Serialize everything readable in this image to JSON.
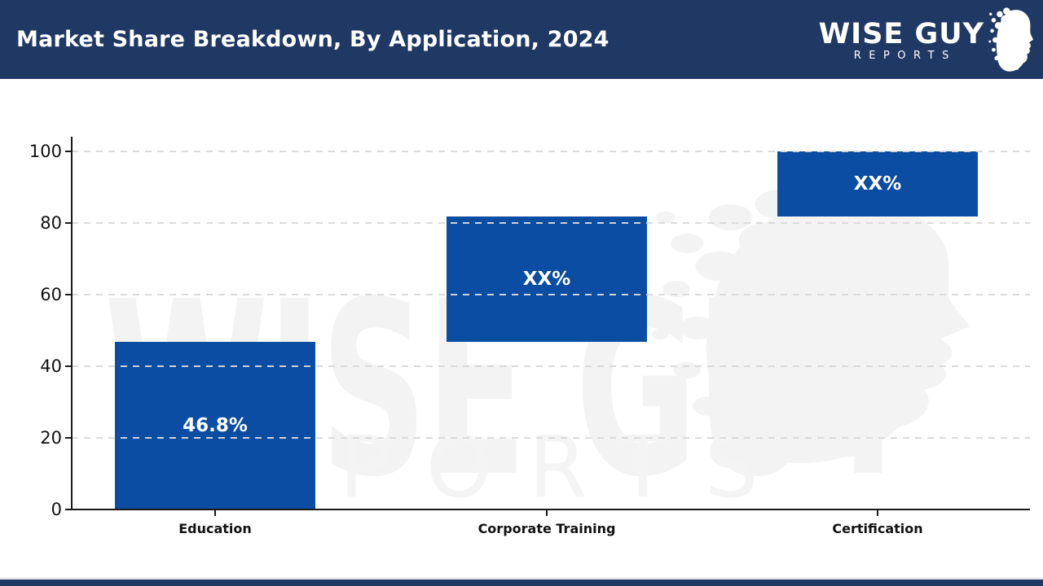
{
  "page": {
    "navy": "#1f3864",
    "white": "#ffffff"
  },
  "header": {
    "title": "Market Share Breakdown, By Application, 2024",
    "logo_line1": "WISE GUY",
    "logo_line2": "REPORTS"
  },
  "watermark": {
    "line1": "WISE GUY",
    "line2": "REPORTS"
  },
  "chart_data": {
    "type": "bar",
    "subtype": "waterfall",
    "title": "Market Share Breakdown, By Application, 2024",
    "categories": [
      "Education",
      "Corporate Training",
      "Certification"
    ],
    "segments": [
      {
        "category": "Education",
        "label": "46.8%",
        "start": 0,
        "end": 46.8
      },
      {
        "category": "Corporate Training",
        "label": "XX%",
        "start": 46.8,
        "end": 81.8
      },
      {
        "category": "Certification",
        "label": "XX%",
        "start": 81.8,
        "end": 100
      }
    ],
    "bar_labels": [
      "46.8%",
      "XX%",
      "XX%"
    ],
    "bar_color": "#0b4da2",
    "bar_label_color": "#ffffff",
    "ylim": [
      0,
      100
    ],
    "yticks": [
      0,
      20,
      40,
      60,
      80,
      100
    ],
    "xlabel": "",
    "ylabel": "",
    "grid": "horizontal-dashed",
    "gridline_color": "#d9d9d9",
    "axis_color": "#1a1a1a",
    "legend": "none"
  }
}
